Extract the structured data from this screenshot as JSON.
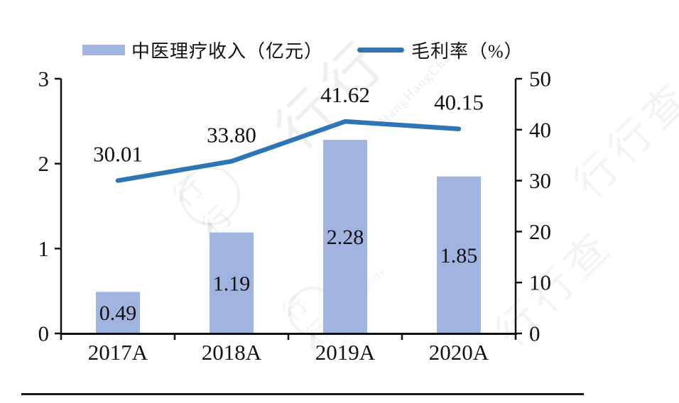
{
  "legend": {
    "items": [
      {
        "label": "中医理疗收入（亿元）",
        "swatch": "bar",
        "color": "#A1B4E0"
      },
      {
        "label": "毛利率（%）",
        "swatch": "line",
        "color": "#2E75B6"
      }
    ]
  },
  "chart_data": {
    "type": "combo",
    "categories": [
      "2017A",
      "2018A",
      "2019A",
      "2020A"
    ],
    "series": [
      {
        "name": "中医理疗收入（亿元）",
        "type": "bar",
        "y_axis": "left",
        "color": "#A1B4E0",
        "values": [
          0.49,
          1.19,
          2.28,
          1.85
        ],
        "labels": [
          "0.49",
          "1.19",
          "2.28",
          "1.85"
        ]
      },
      {
        "name": "毛利率（%）",
        "type": "line",
        "y_axis": "right",
        "color": "#2E75B6",
        "values": [
          30.01,
          33.8,
          41.62,
          40.15
        ],
        "labels": [
          "30.01",
          "33.80",
          "41.62",
          "40.15"
        ]
      }
    ],
    "left_axis": {
      "range": [
        0,
        3
      ],
      "ticks": [
        0,
        1,
        2,
        3
      ]
    },
    "right_axis": {
      "range": [
        0,
        50
      ],
      "ticks": [
        0,
        10,
        20,
        30,
        40,
        50
      ]
    },
    "grid": false,
    "data_labels": true,
    "legend_position": "top",
    "axis_color": "#111111",
    "label_color": "#111111"
  },
  "watermark": {
    "cn": "行行查",
    "cn_short": "行行",
    "en": "HangHangCha",
    "en_lc": "hanghangcha"
  }
}
